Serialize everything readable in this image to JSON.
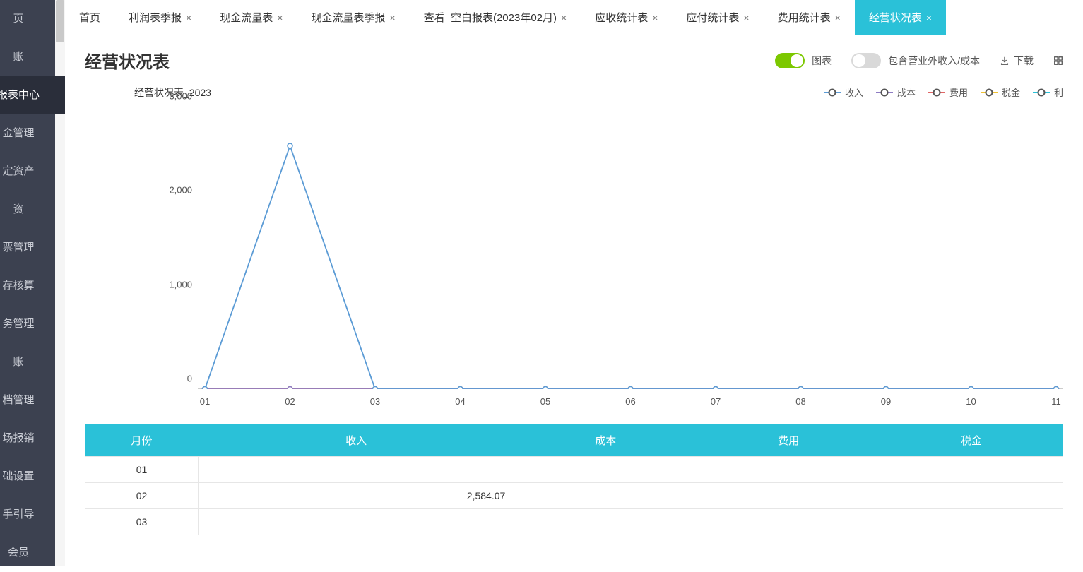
{
  "sidebar": {
    "items": [
      {
        "label": "页"
      },
      {
        "label": "账"
      },
      {
        "label": "报表中心",
        "active": true
      },
      {
        "label": "金管理"
      },
      {
        "label": "定资产"
      },
      {
        "label": "资"
      },
      {
        "label": "票管理"
      },
      {
        "label": "存核算"
      },
      {
        "label": "务管理"
      },
      {
        "label": "账"
      },
      {
        "label": "档管理"
      },
      {
        "label": "场报销"
      },
      {
        "label": "础设置"
      },
      {
        "label": "手引导"
      },
      {
        "label": "会员"
      }
    ]
  },
  "tabs": [
    {
      "label": "首页",
      "closable": false
    },
    {
      "label": "利润表季报",
      "closable": true
    },
    {
      "label": "现金流量表",
      "closable": true
    },
    {
      "label": "现金流量表季报",
      "closable": true
    },
    {
      "label": "查看_空白报表(2023年02月)",
      "closable": true
    },
    {
      "label": "应收统计表",
      "closable": true
    },
    {
      "label": "应付统计表",
      "closable": true
    },
    {
      "label": "费用统计表",
      "closable": true
    },
    {
      "label": "经营状况表",
      "closable": true,
      "active": true
    }
  ],
  "page": {
    "title": "经营状况表",
    "toggle_chart_label": "图表",
    "toggle_extra_label": "包含营业外收入/成本",
    "download_label": "下载"
  },
  "chart": {
    "title": "经营状况表_2023",
    "type": "line",
    "x_categories": [
      "01",
      "02",
      "03",
      "04",
      "05",
      "06",
      "07",
      "08",
      "09",
      "10",
      "11"
    ],
    "ylim": [
      0,
      3000
    ],
    "yticks": [
      0,
      1000,
      2000,
      3000
    ],
    "ytick_labels": [
      "0",
      "1,000",
      "2,000",
      "3,000"
    ],
    "series": [
      {
        "name": "收入",
        "color": "#5b9bd5",
        "values": [
          0,
          2584.07,
          0,
          0,
          0,
          0,
          0,
          0,
          0,
          0,
          0
        ]
      },
      {
        "name": "成本",
        "color": "#8e7cc3",
        "values": [
          0,
          0,
          0,
          0,
          0,
          0,
          0,
          0,
          0,
          0,
          0
        ]
      },
      {
        "name": "费用",
        "color": "#e06666",
        "values": [
          0,
          0,
          0,
          0,
          0,
          0,
          0,
          0,
          0,
          0,
          0
        ]
      },
      {
        "name": "税金",
        "color": "#f1c232",
        "values": [
          0,
          0,
          0,
          0,
          0,
          0,
          0,
          0,
          0,
          0,
          0
        ]
      },
      {
        "name": "利",
        "color": "#2ac1d8",
        "values": [
          0,
          0,
          0,
          0,
          0,
          0,
          0,
          0,
          0,
          0,
          0
        ]
      }
    ],
    "marker_radius": 3.5,
    "line_width": 1.8,
    "background_color": "#ffffff",
    "axis_color": "#555555"
  },
  "table": {
    "columns": [
      "月份",
      "收入",
      "成本",
      "费用",
      "税金"
    ],
    "rows": [
      {
        "month": "01",
        "income": "",
        "cost": "",
        "expense": "",
        "tax": ""
      },
      {
        "month": "02",
        "income": "2,584.07",
        "cost": "",
        "expense": "",
        "tax": ""
      },
      {
        "month": "03",
        "income": "",
        "cost": "",
        "expense": "",
        "tax": ""
      }
    ],
    "header_bg": "#2ac1d8",
    "header_color": "#ffffff",
    "border_color": "#e6e6e6"
  }
}
